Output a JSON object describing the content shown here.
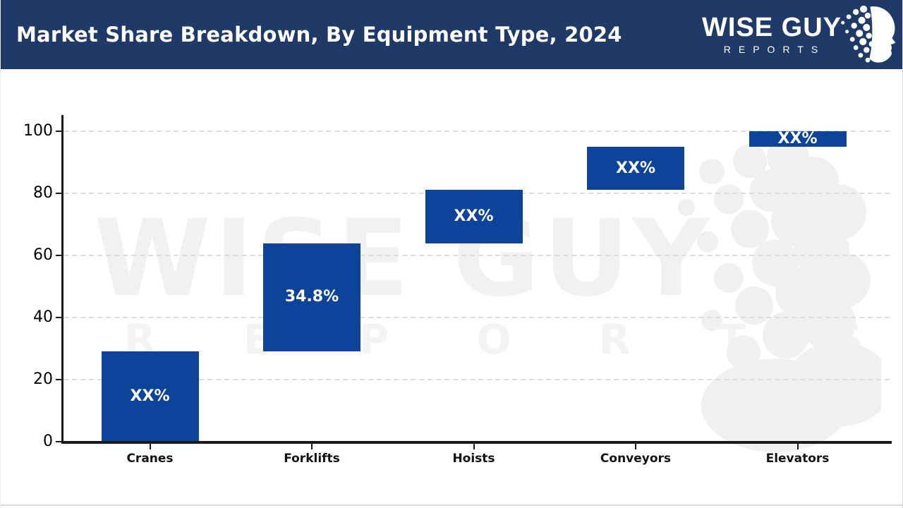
{
  "header": {
    "title": "Market Share Breakdown, By Equipment Type, 2024",
    "logo": {
      "wordmark": "WISE GUY",
      "subtitle": "REPORTS"
    }
  },
  "watermark": {
    "line1": "WISE GUY",
    "line2": "R E P O R T S"
  },
  "colors": {
    "header_bg": "#203a68",
    "bar": "#0d4398",
    "bar_label": "#ffffff",
    "grid": "#dcdcdc",
    "axis": "#1a1a1a",
    "watermark": "#f1f1f1"
  },
  "chart_data": {
    "type": "bar",
    "subtype": "waterfall",
    "title": "Market Share Breakdown, By Equipment Type, 2024",
    "categories": [
      "Cranes",
      "Forklifts",
      "Hoists",
      "Conveyors",
      "Elevators"
    ],
    "segments": [
      {
        "category": "Cranes",
        "start": 0,
        "end": 29.1,
        "label": "XX%"
      },
      {
        "category": "Forklifts",
        "start": 29.1,
        "end": 63.9,
        "label": "34.8%"
      },
      {
        "category": "Hoists",
        "start": 63.9,
        "end": 81.2,
        "label": "XX%"
      },
      {
        "category": "Conveyors",
        "start": 81.2,
        "end": 94.9,
        "label": "XX%"
      },
      {
        "category": "Elevators",
        "start": 94.9,
        "end": 100.1,
        "label": "XX%"
      }
    ],
    "y_ticks": [
      0,
      20,
      40,
      60,
      80,
      100
    ],
    "ylim": [
      0,
      105
    ],
    "xlabel": "",
    "ylabel": "",
    "grid": true,
    "legend": false
  }
}
